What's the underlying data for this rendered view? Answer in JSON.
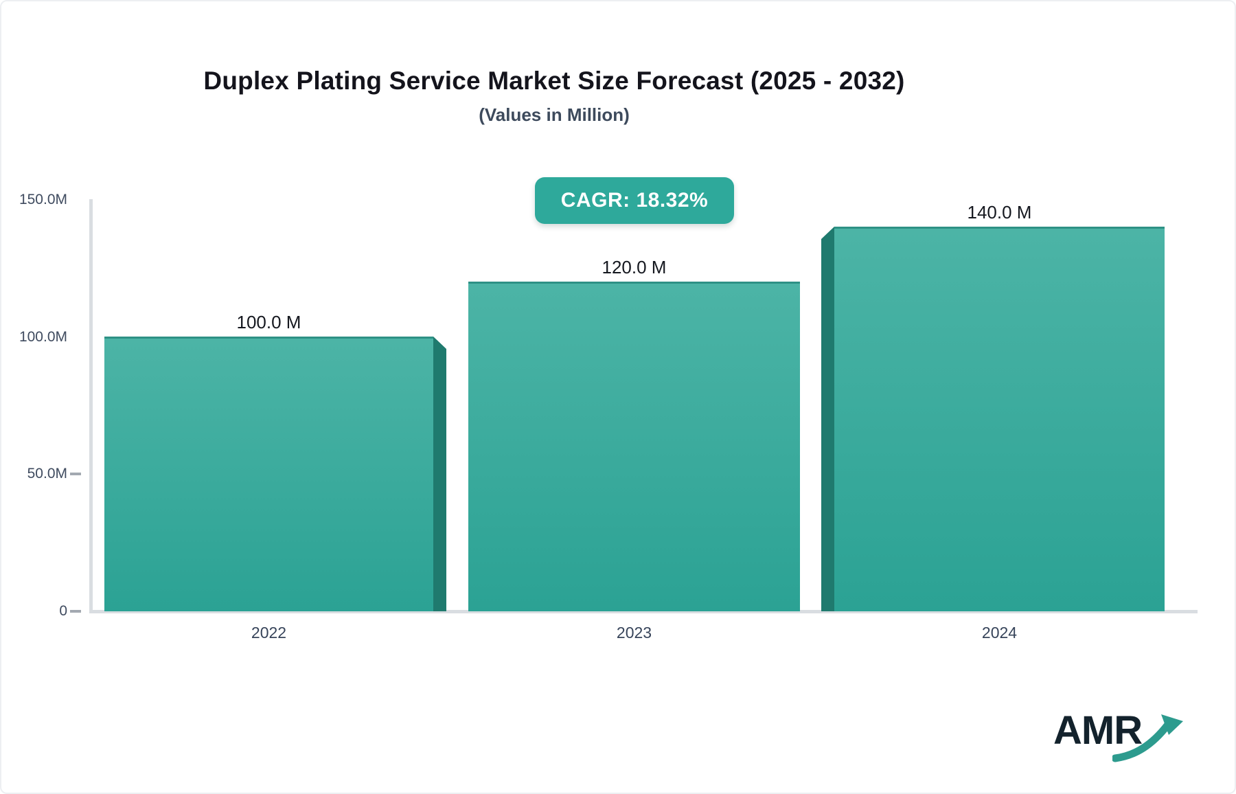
{
  "header": {
    "title": "Duplex Plating Service Market Size Forecast (2025 - 2032)",
    "subtitle": "(Values in Million)",
    "cagr_badge": "CAGR: 18.32%"
  },
  "chart_data": {
    "type": "bar",
    "title": "Duplex Plating Service Market Size Forecast (2025 - 2032)",
    "subtitle": "(Values in Million)",
    "categories": [
      "2022",
      "2023",
      "2024"
    ],
    "values": [
      100.0,
      120.0,
      140.0
    ],
    "bar_labels": [
      "100.0 M",
      "120.0 M",
      "140.0 M"
    ],
    "cagr_percent": 18.32,
    "xlabel": "",
    "ylabel": "",
    "ylim": [
      0,
      150
    ],
    "y_ticks": [
      "150.0M",
      "100.0M",
      "50.0M",
      "0"
    ],
    "grid": "off",
    "legend": "none"
  },
  "logo": {
    "text": "AMR",
    "icon": "growth-arrow-icon"
  },
  "colors": {
    "bar_gradient_top": "#4cb4a6",
    "bar_gradient_bottom": "#2ba294",
    "bar_side_face": "#1f7a6e",
    "badge_background": "#2ea99b",
    "axis_line": "#d9dde1",
    "logo_arrow": "#2d9b8e"
  }
}
